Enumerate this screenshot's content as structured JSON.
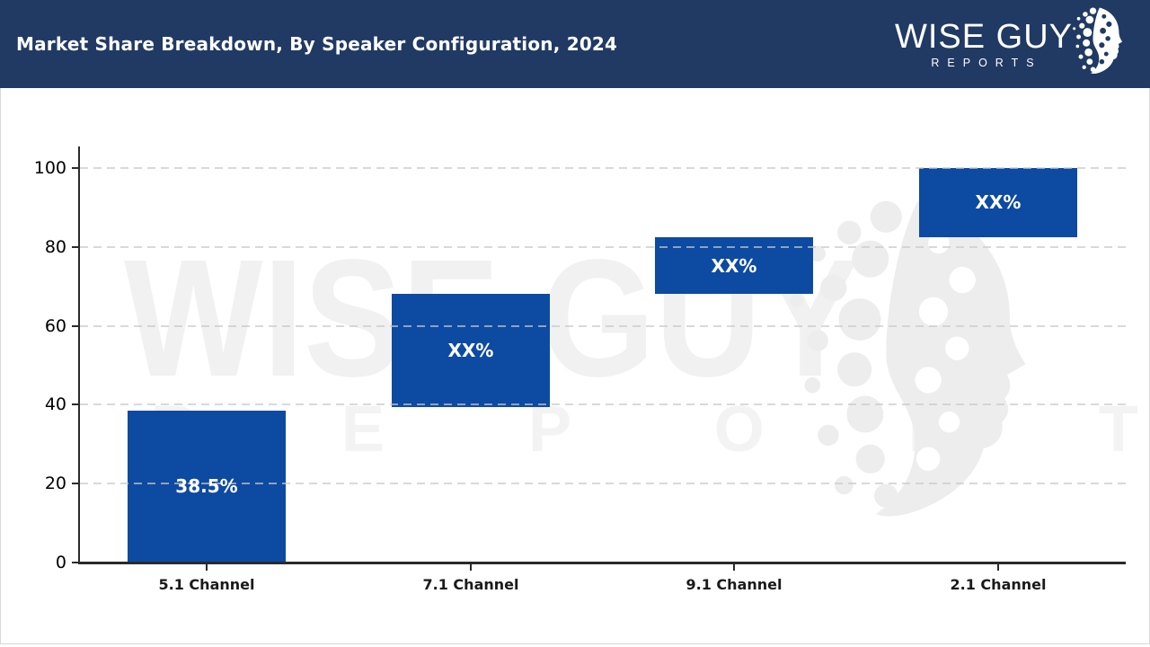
{
  "header": {
    "title": "Market Share Breakdown, By Speaker Configuration, 2024",
    "bg_color": "#213a64",
    "logo": {
      "line1": "WISE GUY",
      "line2": "REPORTS"
    }
  },
  "watermark": {
    "line1": "WISE GUY",
    "line2": "R E P O R T S"
  },
  "chart_data": {
    "type": "bar",
    "variant": "waterfall",
    "title": "Market Share Breakdown, By Speaker Configuration, 2024",
    "categories": [
      "5.1 Channel",
      "7.1 Channel",
      "9.1 Channel",
      "2.1 Channel"
    ],
    "segments": [
      {
        "category": "5.1 Channel",
        "start": 0,
        "end": 38.5,
        "label": "38.5%"
      },
      {
        "category": "7.1 Channel",
        "start": 39.5,
        "end": 68,
        "label": "XX%"
      },
      {
        "category": "9.1 Channel",
        "start": 68,
        "end": 82.5,
        "label": "XX%"
      },
      {
        "category": "2.1 Channel",
        "start": 82.5,
        "end": 100,
        "label": "XX%"
      }
    ],
    "xlabel": "",
    "ylabel": "",
    "y_ticks": [
      0,
      20,
      40,
      60,
      80,
      100
    ],
    "ylim": [
      0,
      105
    ],
    "grid": "horizontal-dashed",
    "legend": "none",
    "bar_color": "#0d4aa2",
    "bar_label_color": "#ffffff",
    "axis_color": "#2a2a2a"
  }
}
